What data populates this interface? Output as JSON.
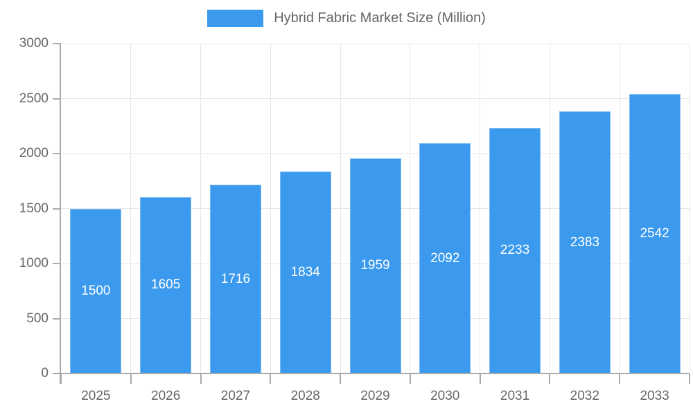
{
  "chart_data": {
    "type": "bar",
    "title": "Hybrid Fabric Market Size (Million)",
    "categories": [
      "2025",
      "2026",
      "2027",
      "2028",
      "2029",
      "2030",
      "2031",
      "2032",
      "2033"
    ],
    "values": [
      1500,
      1605,
      1716,
      1834,
      1959,
      2092,
      2233,
      2383,
      2542
    ],
    "xlabel": "",
    "ylabel": "",
    "ylim": [
      0,
      3000
    ],
    "yticks": [
      0,
      500,
      1000,
      1500,
      2000,
      2500,
      3000
    ],
    "grid": "both",
    "legend_position": "top-center",
    "value_labels": "inside-center",
    "colors": {
      "bar": "#3B9AEE",
      "bar_border": "rgba(255,255,255,0.35)",
      "grid": "#E6E6E6",
      "axis": "#AAAAAA",
      "text": "#666666",
      "value_label_text": "#FFFFFF",
      "background": "#FFFFFF"
    }
  }
}
